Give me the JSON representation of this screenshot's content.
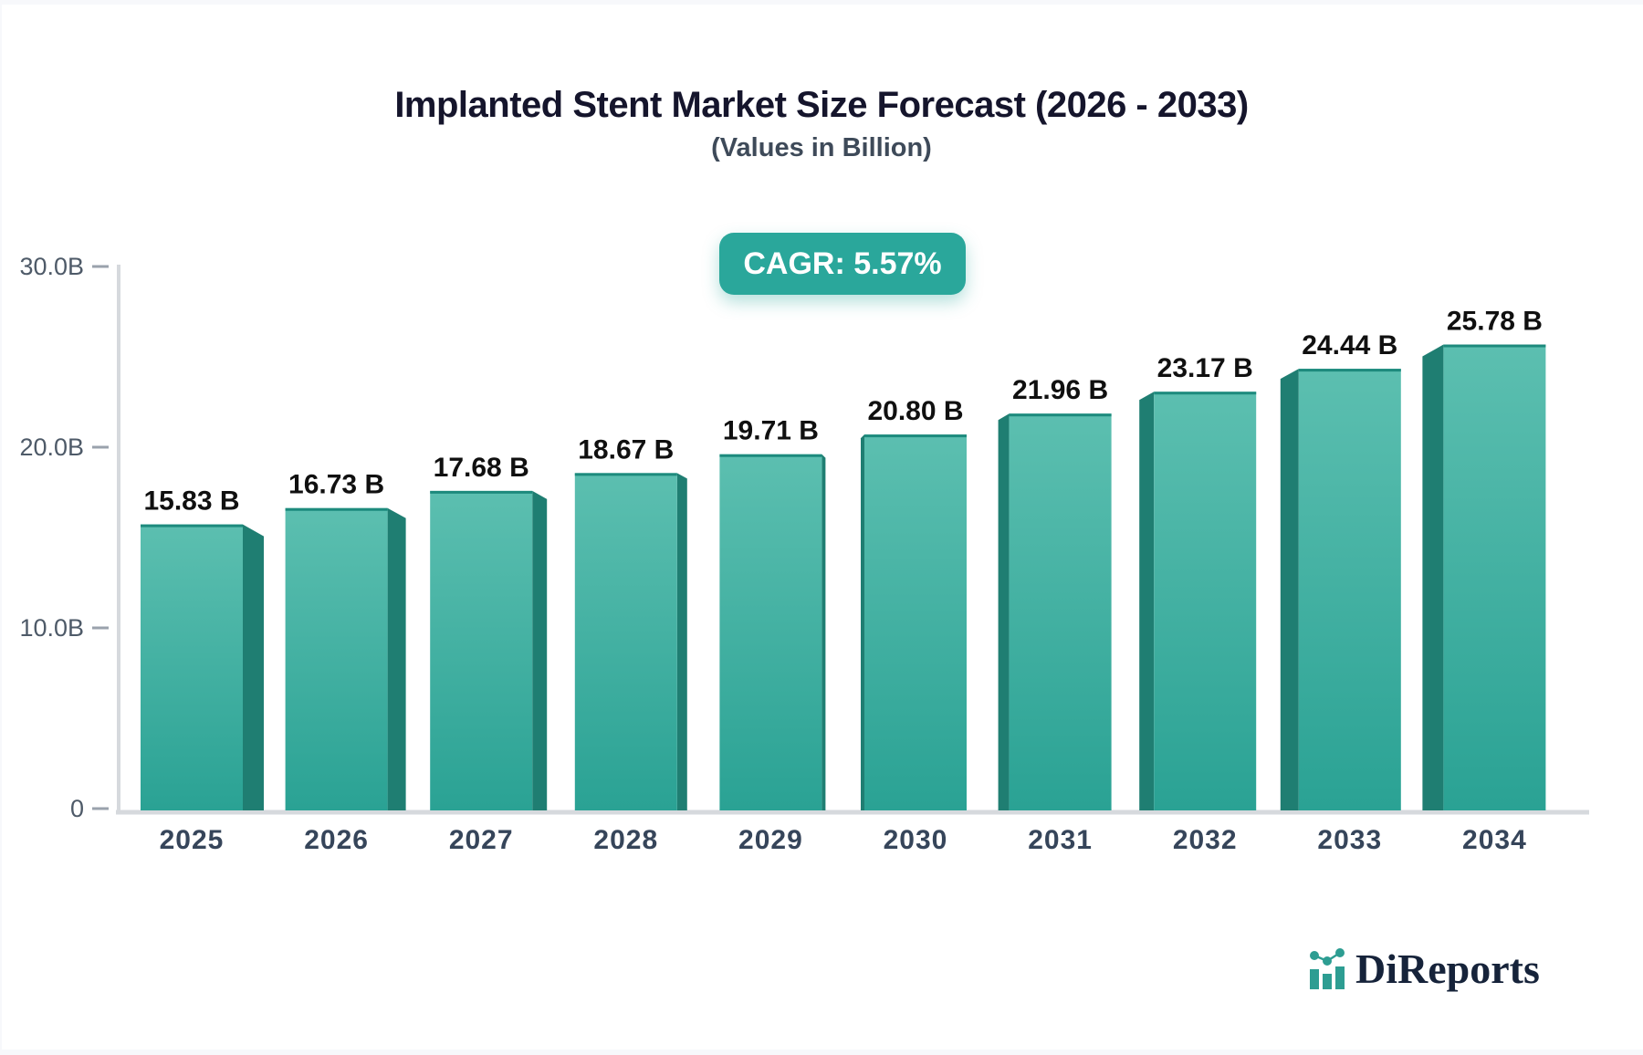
{
  "title": "Implanted Stent Market Size Forecast (2026 - 2033)",
  "subtitle": "(Values in Billion)",
  "badge": {
    "label": "CAGR: 5.57%",
    "background": "#2aa79b"
  },
  "logo": {
    "brand": "DiReports"
  },
  "chart_data": {
    "type": "bar",
    "title": "Implanted Stent Market Size Forecast (2026 - 2033)",
    "subtitle": "(Values in Billion)",
    "cagr": "5.57%",
    "categories": [
      "2025",
      "2026",
      "2027",
      "2028",
      "2029",
      "2030",
      "2031",
      "2032",
      "2033",
      "2034"
    ],
    "values": [
      15.83,
      16.73,
      17.68,
      18.67,
      19.71,
      20.8,
      21.96,
      23.17,
      24.44,
      25.78
    ],
    "value_labels": [
      "15.83 B",
      "16.73 B",
      "17.68 B",
      "18.67 B",
      "19.71 B",
      "20.80 B",
      "21.96 B",
      "23.17 B",
      "24.44 B",
      "25.78 B"
    ],
    "ylim": [
      0,
      30
    ],
    "yticks": [
      {
        "value": 0,
        "label": "0"
      },
      {
        "value": 10,
        "label": "10.0B"
      },
      {
        "value": 20,
        "label": "20.0B"
      },
      {
        "value": 30,
        "label": "30.0B"
      }
    ],
    "grid": false,
    "legend": "none",
    "colors": {
      "bar_front_top": "#5cbfb0",
      "bar_front_bottom": "#2aa294",
      "bar_side": "#1f7e72",
      "bar_top_edge": "#1d8a7d",
      "axis_line": "#d6d9dd",
      "tick_dash": "#9aa2ac",
      "ytick_label": "#4e5a68",
      "xtick_label": "#36455a",
      "value_label": "#101010"
    }
  }
}
